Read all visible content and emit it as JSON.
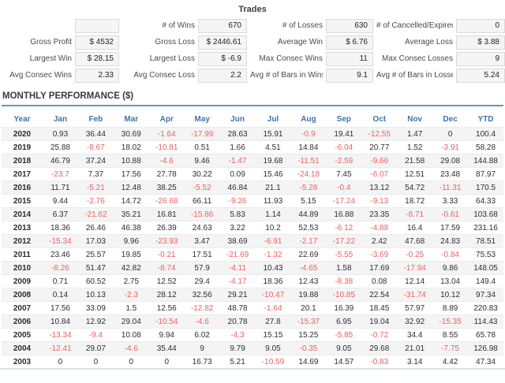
{
  "trades": {
    "title": "Trades",
    "rows": [
      [
        {
          "label": "",
          "value": ""
        },
        {
          "label": "# of Wins",
          "value": "670"
        },
        {
          "label": "# of Losses",
          "value": "630"
        },
        {
          "label": "# of Cancelled/Expired",
          "value": "0"
        }
      ],
      [
        {
          "label": "Gross Profit",
          "value": "$ 4532"
        },
        {
          "label": "Gross Loss",
          "value": "$ 2446.61"
        },
        {
          "label": "Average Win",
          "value": "$ 6.76"
        },
        {
          "label": "Average Loss",
          "value": "$ 3.88"
        }
      ],
      [
        {
          "label": "Largest Win",
          "value": "$ 28.15"
        },
        {
          "label": "Largest Loss",
          "value": "$ -6.9"
        },
        {
          "label": "Max Consec Wins",
          "value": "11"
        },
        {
          "label": "Max Consec Losses",
          "value": "9"
        }
      ],
      [
        {
          "label": "Avg Consec Wins",
          "value": "2.33"
        },
        {
          "label": "Avg Consec Loss",
          "value": "2.2"
        },
        {
          "label": "Avg # of Bars in Wins",
          "value": "9.1"
        },
        {
          "label": "Avg # of Bars in Losses",
          "value": "5.24"
        }
      ]
    ]
  },
  "monthly": {
    "heading": "MONTHLY PERFORMANCE ($)",
    "columns": [
      "Year",
      "Jan",
      "Feb",
      "Mar",
      "Apr",
      "May",
      "Jun",
      "Jul",
      "Aug",
      "Sep",
      "Oct",
      "Nov",
      "Dec",
      "YTD"
    ],
    "rows": [
      {
        "year": "2020",
        "values": [
          0.93,
          36.44,
          30.69,
          -1.64,
          -17.99,
          28.63,
          15.91,
          -0.9,
          19.41,
          -12.55,
          1.47,
          0,
          100.4
        ]
      },
      {
        "year": "2019",
        "values": [
          25.88,
          -8.67,
          18.02,
          -10.81,
          0.51,
          1.66,
          4.51,
          14.84,
          -6.04,
          20.77,
          1.52,
          -3.91,
          58.28
        ]
      },
      {
        "year": "2018",
        "values": [
          46.79,
          37.24,
          10.88,
          -4.6,
          9.46,
          -1.47,
          19.68,
          -11.51,
          -2.59,
          -9.66,
          21.58,
          29.08,
          144.88
        ]
      },
      {
        "year": "2017",
        "values": [
          -23.7,
          7.37,
          17.56,
          27.78,
          30.22,
          0.09,
          15.46,
          -24.18,
          7.45,
          -6.07,
          12.51,
          23.48,
          87.97
        ]
      },
      {
        "year": "2016",
        "values": [
          11.71,
          -5.21,
          12.48,
          38.25,
          -5.52,
          46.84,
          21.1,
          -5.28,
          -0.4,
          13.12,
          54.72,
          -11.31,
          170.5
        ]
      },
      {
        "year": "2015",
        "values": [
          9.44,
          -2.76,
          14.72,
          -26.68,
          66.11,
          -9.26,
          11.93,
          5.15,
          -17.24,
          -9.13,
          18.72,
          3.33,
          64.33
        ]
      },
      {
        "year": "2014",
        "values": [
          6.37,
          -21.62,
          35.21,
          16.81,
          -15.86,
          5.83,
          1.14,
          44.89,
          16.88,
          23.35,
          -8.71,
          -0.61,
          103.68
        ]
      },
      {
        "year": "2013",
        "values": [
          18.36,
          26.46,
          46.38,
          26.39,
          24.63,
          3.22,
          10.2,
          52.53,
          -6.12,
          -4.88,
          16.4,
          17.59,
          231.16
        ]
      },
      {
        "year": "2012",
        "values": [
          -15.34,
          17.03,
          9.96,
          -23.93,
          3.47,
          38.69,
          -6.91,
          -2.17,
          -17.22,
          2.42,
          47.68,
          24.83,
          78.51
        ]
      },
      {
        "year": "2011",
        "values": [
          23.46,
          25.57,
          19.85,
          -0.21,
          17.51,
          -21.69,
          -1.32,
          22.69,
          -5.55,
          -3.69,
          -0.25,
          -0.84,
          75.53
        ]
      },
      {
        "year": "2010",
        "values": [
          -8.26,
          51.47,
          42.82,
          -8.74,
          57.9,
          -4.11,
          10.43,
          -4.65,
          1.58,
          17.69,
          -17.94,
          9.86,
          148.05
        ]
      },
      {
        "year": "2009",
        "values": [
          0.71,
          60.52,
          2.75,
          12.52,
          29.4,
          -4.17,
          18.36,
          12.43,
          -8.38,
          0.08,
          12.14,
          13.04,
          149.4
        ]
      },
      {
        "year": "2008",
        "values": [
          0.14,
          10.13,
          -2.3,
          28.12,
          32.56,
          29.21,
          -10.47,
          19.88,
          -10.85,
          22.54,
          -31.74,
          10.12,
          97.34
        ]
      },
      {
        "year": "2007",
        "values": [
          17.56,
          33.09,
          1.5,
          12.56,
          -12.82,
          48.78,
          -1.64,
          20.1,
          16.39,
          18.45,
          57.97,
          8.89,
          220.83
        ]
      },
      {
        "year": "2006",
        "values": [
          10.84,
          12.92,
          29.04,
          -10.54,
          -4.6,
          20.78,
          27.8,
          -15.37,
          6.95,
          19.04,
          32.92,
          -15.35,
          114.43
        ]
      },
      {
        "year": "2005",
        "values": [
          -13.34,
          -9.4,
          10.08,
          9.94,
          6.02,
          -4.3,
          15.15,
          15.25,
          -5.85,
          -0.72,
          34.4,
          8.55,
          65.78
        ]
      },
      {
        "year": "2004",
        "values": [
          -12.41,
          29.07,
          -4.6,
          35.44,
          9,
          9.79,
          9.05,
          -0.35,
          9.05,
          29.68,
          21.01,
          -7.75,
          126.98
        ]
      },
      {
        "year": "2003",
        "values": [
          0,
          0,
          0,
          0,
          16.73,
          5.21,
          -10.59,
          14.69,
          14.57,
          -0.83,
          3.14,
          4.42,
          47.34
        ]
      }
    ]
  },
  "colors": {
    "negative_value": "#ee5f5f",
    "header_blue": "#3f73ae",
    "heading_rule_blue": "#6e92b8",
    "bottom_rule_blue": "#dbe5f1",
    "row_stripe": "#f4f4f4",
    "stat_box_bg": "#f5f5f5",
    "stat_box_border": "#d9d9d9"
  }
}
